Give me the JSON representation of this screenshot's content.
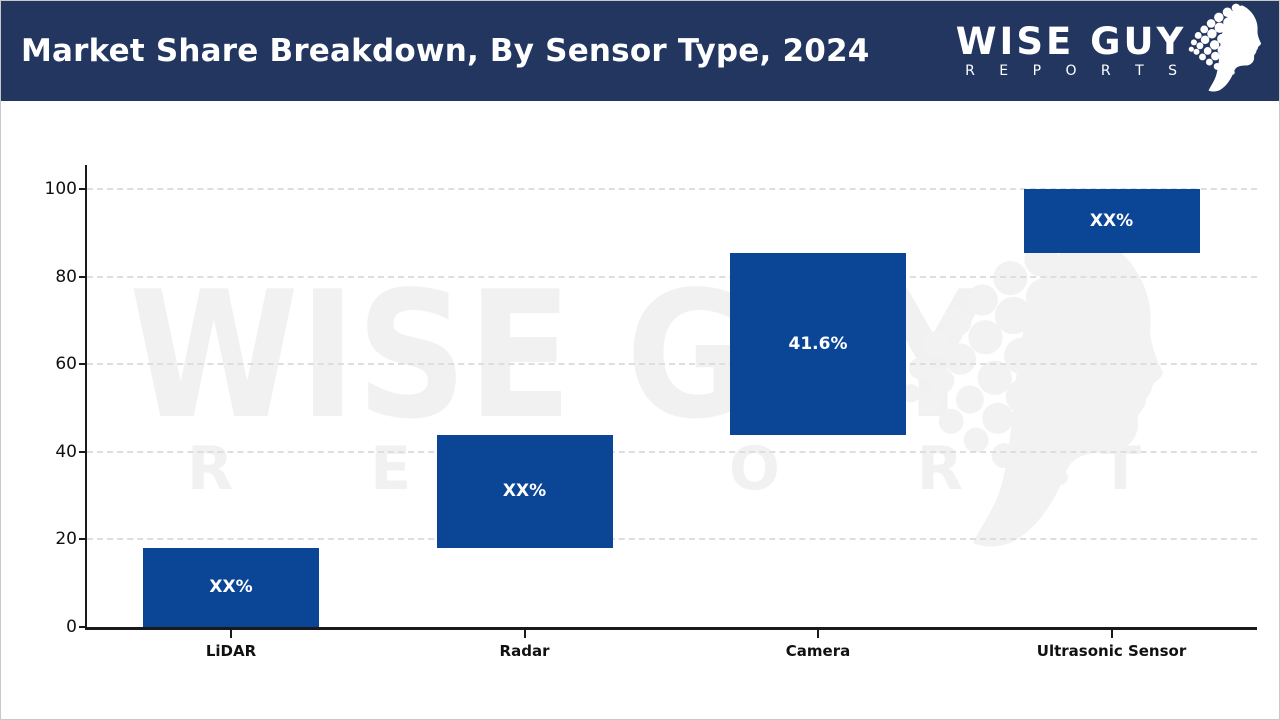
{
  "header": {
    "title": "Market Share Breakdown, By Sensor Type, 2024",
    "bg_color": "#223660",
    "logo": {
      "line1": "WISE GUY",
      "line2": "R E P O R T S"
    }
  },
  "watermark": {
    "line1": "WISE GUY",
    "line2": "R E P O R T S"
  },
  "chart_data": {
    "type": "bar",
    "subtype": "floating-segment-waterfall",
    "title": "Market Share Breakdown, By Sensor Type, 2024",
    "xlabel": "",
    "ylabel": "",
    "ylim": [
      0,
      100
    ],
    "yticks": [
      0,
      20,
      40,
      60,
      80,
      100
    ],
    "grid": "horizontal-dashed",
    "legend": "none",
    "bar_color": "#0b4596",
    "categories": [
      "LiDAR",
      "Radar",
      "Camera",
      "Ultrasonic Sensor"
    ],
    "segments": [
      {
        "category": "LiDAR",
        "start": 0,
        "end": 18.1,
        "value_label": "XX%"
      },
      {
        "category": "Radar",
        "start": 18.1,
        "end": 43.8,
        "value_label": "XX%"
      },
      {
        "category": "Camera",
        "start": 43.8,
        "end": 85.4,
        "value_label": "41.6%"
      },
      {
        "category": "Ultrasonic Sensor",
        "start": 85.4,
        "end": 100,
        "value_label": "XX%"
      }
    ]
  }
}
